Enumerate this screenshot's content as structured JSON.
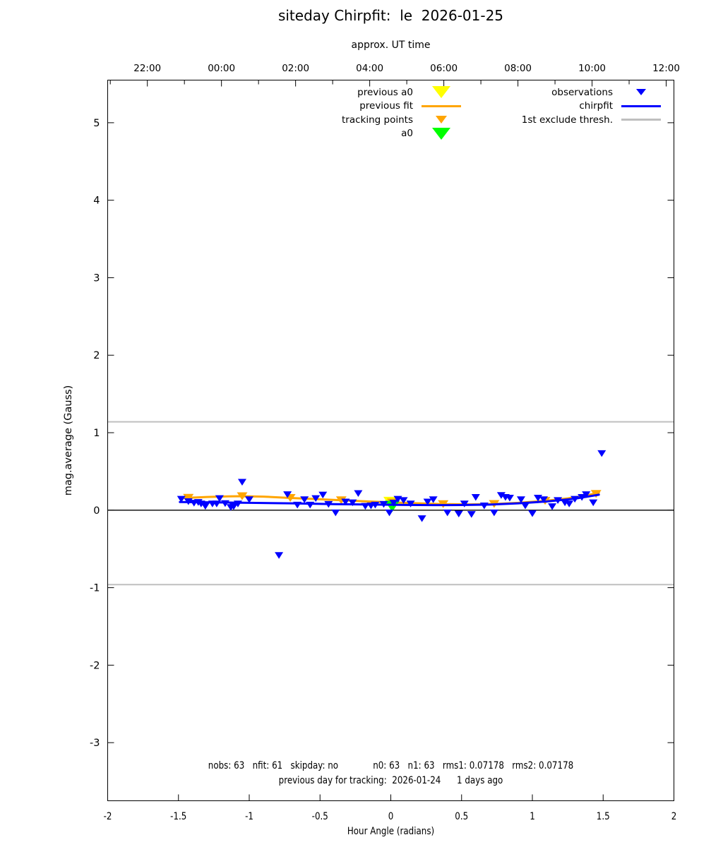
{
  "title": "siteday Chirpfit:  le  2026-01-25",
  "top_axis": {
    "label": "approx. UT time"
  },
  "stats": {
    "line1": "nobs: 63   nfit: 61   skipday: no             n0: 63   n1: 63   rms1: 0.07178   rms2: 0.07178",
    "line2": "previous day for tracking:  2026-01-24      1 days ago"
  },
  "legend": {
    "left": [
      {
        "label": "previous a0",
        "marker": "triangle-down-large",
        "color": "#ffff00"
      },
      {
        "label": "previous fit",
        "marker": "line",
        "color": "#ffa500"
      },
      {
        "label": "tracking points",
        "marker": "triangle-down-medium",
        "color": "#ffa500"
      },
      {
        "label": "a0",
        "marker": "triangle-down-large",
        "color": "#00ff00"
      }
    ],
    "right": [
      {
        "label": "observations",
        "marker": "triangle-down-small",
        "color": "#0000ff"
      },
      {
        "label": "chirpfit",
        "marker": "line",
        "color": "#0000ff"
      },
      {
        "label": "1st exclude thresh.",
        "marker": "line",
        "color": "#bfbfbf"
      }
    ]
  },
  "colors": {
    "observations": "#0000ff",
    "chirpfit": "#0000ff",
    "previous_fit": "#ffa500",
    "tracking_points": "#ffa500",
    "previous_a0": "#ffff00",
    "a0": "#00ff00",
    "exclude_threshold": "#bfbfbf",
    "axis": "#000000"
  },
  "chart_data": {
    "type": "scatter",
    "title": "siteday Chirpfit:  le  2026-01-25",
    "xlabel": "Hour Angle (radians)",
    "ylabel": "mag.average (Gauss)",
    "x2label": "approx. UT time",
    "xlim": [
      -2,
      2
    ],
    "ylim": [
      -3.75,
      5.55
    ],
    "grid": false,
    "legend_position": "top-inside",
    "x_ticks": [
      -2,
      -1.5,
      -1,
      -0.5,
      0,
      0.5,
      1,
      1.5,
      2
    ],
    "y_ticks": [
      -3,
      -2,
      -1,
      0,
      1,
      2,
      3,
      4,
      5
    ],
    "top_axis_ticks": [
      {
        "ha": -1.9815,
        "label": ""
      },
      {
        "ha": -1.7197,
        "label": "22:00"
      },
      {
        "ha": -1.4579,
        "label": ""
      },
      {
        "ha": -1.1962,
        "label": "00:00"
      },
      {
        "ha": -0.9344,
        "label": ""
      },
      {
        "ha": -0.6726,
        "label": "02:00"
      },
      {
        "ha": -0.4108,
        "label": ""
      },
      {
        "ha": -0.149,
        "label": "04:00"
      },
      {
        "ha": 0.1128,
        "label": ""
      },
      {
        "ha": 0.3746,
        "label": "06:00"
      },
      {
        "ha": 0.6363,
        "label": ""
      },
      {
        "ha": 0.8981,
        "label": "08:00"
      },
      {
        "ha": 1.1599,
        "label": ""
      },
      {
        "ha": 1.4217,
        "label": "10:00"
      },
      {
        "ha": 1.6835,
        "label": ""
      },
      {
        "ha": 1.9453,
        "label": "12:00"
      }
    ],
    "zero_line": 0,
    "series": [
      {
        "name": "previous a0",
        "type": "scatter",
        "marker": "triangle-down-large",
        "color": "#ffff00",
        "points": [
          [
            0.0,
            0.1
          ]
        ]
      },
      {
        "name": "previous fit",
        "type": "line",
        "color": "#ffa500",
        "points": [
          [
            -1.49,
            0.155
          ],
          [
            -1.43,
            0.16
          ],
          [
            -1.3,
            0.17
          ],
          [
            -1.15,
            0.178
          ],
          [
            -1.05,
            0.18
          ],
          [
            -0.9,
            0.175
          ],
          [
            -0.71,
            0.158
          ],
          [
            -0.55,
            0.145
          ],
          [
            -0.35,
            0.128
          ],
          [
            -0.15,
            0.112
          ],
          [
            0.01,
            0.1
          ],
          [
            0.2,
            0.088
          ],
          [
            0.37,
            0.078
          ],
          [
            0.55,
            0.075
          ],
          [
            0.73,
            0.08
          ],
          [
            0.9,
            0.095
          ],
          [
            1.09,
            0.12
          ],
          [
            1.25,
            0.152
          ],
          [
            1.38,
            0.19
          ],
          [
            1.47,
            0.225
          ]
        ]
      },
      {
        "name": "tracking points",
        "type": "scatter",
        "marker": "triangle-down-medium",
        "color": "#ffa500",
        "points": [
          [
            -1.43,
            0.16
          ],
          [
            -1.05,
            0.18
          ],
          [
            -0.71,
            0.158
          ],
          [
            -0.35,
            0.128
          ],
          [
            0.01,
            0.1
          ],
          [
            0.37,
            0.078
          ],
          [
            0.73,
            0.08
          ],
          [
            1.09,
            0.12
          ],
          [
            1.45,
            0.21
          ]
        ]
      },
      {
        "name": "a0",
        "type": "scatter",
        "marker": "triangle-down-large",
        "color": "#00ff00",
        "points": [
          [
            0.01,
            0.05
          ]
        ]
      },
      {
        "name": "observations",
        "type": "scatter",
        "marker": "triangle-down-small",
        "color": "#0000ff",
        "points": [
          [
            -1.48,
            0.14
          ],
          [
            -1.43,
            0.11
          ],
          [
            -1.39,
            0.09
          ],
          [
            -1.36,
            0.1
          ],
          [
            -1.34,
            0.08
          ],
          [
            -1.31,
            0.05
          ],
          [
            -1.26,
            0.08
          ],
          [
            -1.23,
            0.08
          ],
          [
            -1.21,
            0.15
          ],
          [
            -1.17,
            0.085
          ],
          [
            -1.13,
            0.035
          ],
          [
            -1.11,
            0.045
          ],
          [
            -1.08,
            0.08
          ],
          [
            -1.05,
            0.36
          ],
          [
            -1.0,
            0.135
          ],
          [
            -0.79,
            -0.585
          ],
          [
            -0.73,
            0.2
          ],
          [
            -0.66,
            0.065
          ],
          [
            -0.61,
            0.135
          ],
          [
            -0.57,
            0.065
          ],
          [
            -0.53,
            0.15
          ],
          [
            -0.48,
            0.195
          ],
          [
            -0.44,
            0.075
          ],
          [
            -0.39,
            -0.035
          ],
          [
            -0.32,
            0.105
          ],
          [
            -0.27,
            0.095
          ],
          [
            -0.23,
            0.215
          ],
          [
            -0.18,
            0.05
          ],
          [
            -0.14,
            0.055
          ],
          [
            -0.11,
            0.065
          ],
          [
            -0.05,
            0.075
          ],
          [
            -0.01,
            -0.035
          ],
          [
            0.02,
            0.09
          ],
          [
            0.05,
            0.14
          ],
          [
            0.09,
            0.125
          ],
          [
            0.14,
            0.08
          ],
          [
            0.22,
            -0.11
          ],
          [
            0.26,
            0.105
          ],
          [
            0.3,
            0.135
          ],
          [
            0.4,
            -0.035
          ],
          [
            0.48,
            -0.05
          ],
          [
            0.52,
            0.08
          ],
          [
            0.57,
            -0.055
          ],
          [
            0.6,
            0.165
          ],
          [
            0.66,
            0.055
          ],
          [
            0.73,
            -0.035
          ],
          [
            0.78,
            0.19
          ],
          [
            0.81,
            0.165
          ],
          [
            0.84,
            0.155
          ],
          [
            0.92,
            0.135
          ],
          [
            0.95,
            0.055
          ],
          [
            1.0,
            -0.045
          ],
          [
            1.04,
            0.155
          ],
          [
            1.08,
            0.135
          ],
          [
            1.14,
            0.045
          ],
          [
            1.18,
            0.125
          ],
          [
            1.23,
            0.095
          ],
          [
            1.26,
            0.08
          ],
          [
            1.3,
            0.14
          ],
          [
            1.35,
            0.165
          ],
          [
            1.38,
            0.2
          ],
          [
            1.43,
            0.095
          ],
          [
            1.49,
            0.73
          ]
        ]
      },
      {
        "name": "chirpfit",
        "type": "line",
        "color": "#0000ff",
        "points": [
          [
            -1.49,
            0.105
          ],
          [
            -1.2,
            0.1
          ],
          [
            -1.0,
            0.095
          ],
          [
            -0.7,
            0.088
          ],
          [
            -0.4,
            0.078
          ],
          [
            -0.1,
            0.072
          ],
          [
            0.1,
            0.068
          ],
          [
            0.3,
            0.065
          ],
          [
            0.5,
            0.066
          ],
          [
            0.7,
            0.072
          ],
          [
            0.9,
            0.088
          ],
          [
            1.1,
            0.112
          ],
          [
            1.3,
            0.148
          ],
          [
            1.47,
            0.2
          ]
        ]
      },
      {
        "name": "1st exclude thresh.",
        "type": "hline",
        "color": "#bfbfbf",
        "values": [
          1.14,
          -0.96
        ]
      }
    ]
  }
}
